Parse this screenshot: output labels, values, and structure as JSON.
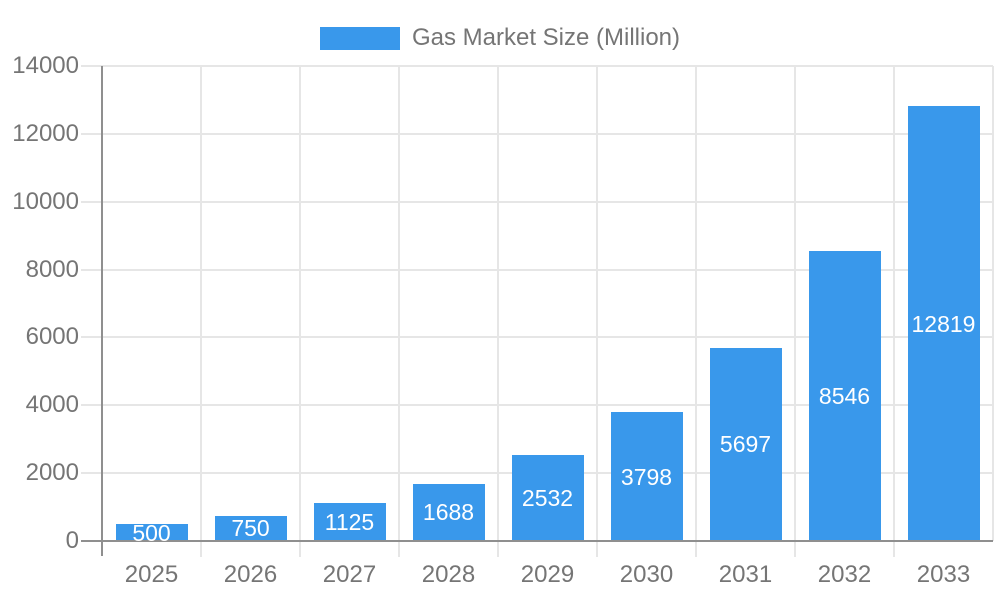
{
  "colors": {
    "background": "#ffffff",
    "bar": "#3998eb",
    "gridline": "#e6e6e6",
    "axis_line": "#8f8f8f",
    "axis_text": "#757575",
    "value_label_text": "#ffffff"
  },
  "chart_data": {
    "type": "bar",
    "title": "",
    "xlabel": "",
    "ylabel": "",
    "legend_position": "top",
    "grid": true,
    "value_labels_position": "inside-center",
    "categories": [
      "2025",
      "2026",
      "2027",
      "2028",
      "2029",
      "2030",
      "2031",
      "2032",
      "2033"
    ],
    "series": [
      {
        "name": "Gas Market Size (Million)",
        "values": [
          500,
          750,
          1125,
          1688,
          2532,
          3798,
          5697,
          8546,
          12819
        ]
      }
    ],
    "ylim": [
      0,
      14000
    ],
    "ytick_step": 2000,
    "ytick_labels": [
      "0",
      "2000",
      "4000",
      "6000",
      "8000",
      "10000",
      "12000",
      "14000"
    ]
  }
}
